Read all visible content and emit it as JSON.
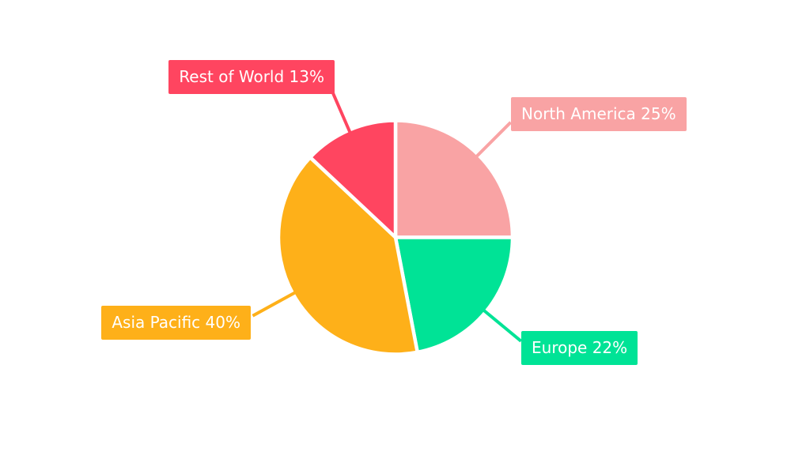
{
  "page": {
    "background": "#FFFFFF"
  },
  "chart_data": {
    "type": "pie",
    "title": "",
    "labels": [
      "North America",
      "Europe",
      "Asia Pacific",
      "Rest of World"
    ],
    "values": [
      25,
      22,
      40,
      13
    ],
    "unit": "%",
    "colors": [
      "#F9A3A4",
      "#00E396",
      "#FEB019",
      "#FF4560"
    ],
    "label_texts": [
      "North America 25%",
      "Europe 22%",
      "Asia Pacific 40%",
      "Rest of World 13%"
    ],
    "label_text_color": "#FFFFFF",
    "start_angle_deg": 0,
    "direction": "clockwise",
    "legend_position": "none",
    "grid": false
  }
}
